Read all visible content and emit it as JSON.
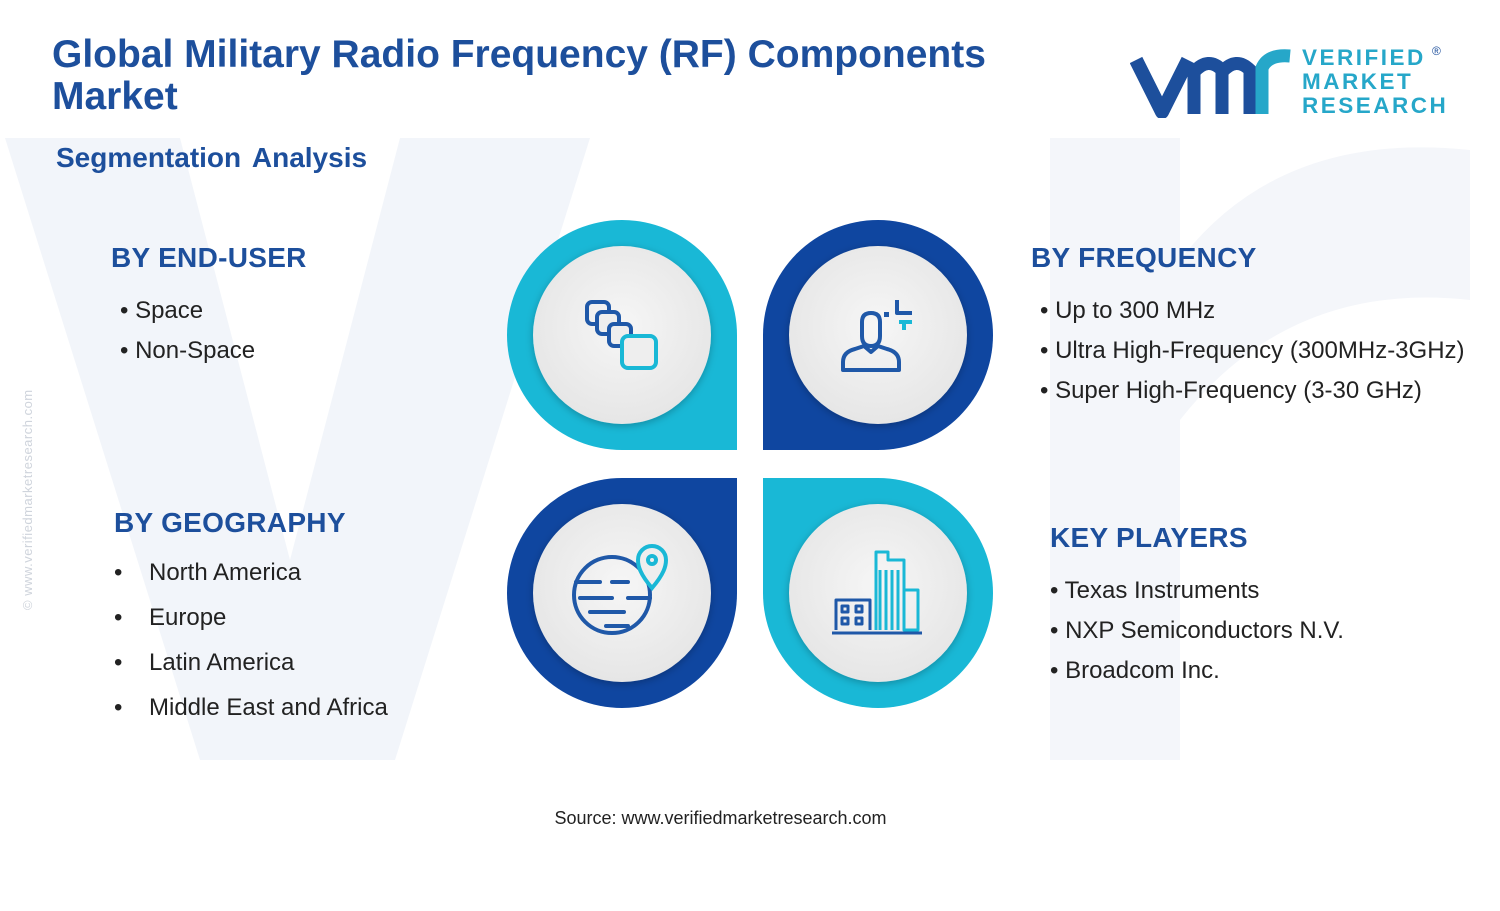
{
  "header": {
    "title": "Global Military Radio Frequency (RF) Components Market",
    "subtitle": "Segmentation Analysis"
  },
  "logo": {
    "lines": [
      "VERIFIED",
      "MARKET",
      "RESEARCH"
    ],
    "registered": "®"
  },
  "watermark": "© www.verifiedmarketresearch.com",
  "segments": {
    "end_user": {
      "heading": "BY END-USER",
      "items": [
        "Space",
        "Non-Space"
      ]
    },
    "frequency": {
      "heading": "BY FREQUENCY",
      "items": [
        "Up to 300 MHz",
        "Ultra High-Frequency (300MHz-3GHz)",
        "Super High-Frequency (3-30 GHz)"
      ]
    },
    "geography": {
      "heading": "BY GEOGRAPHY",
      "items": [
        "North America",
        "Europe",
        "Latin America",
        "Middle East and Africa"
      ]
    },
    "key_players": {
      "heading": "KEY PLAYERS",
      "items": [
        "Texas Instruments",
        "NXP Semiconductors N.V.",
        "Broadcom Inc."
      ]
    }
  },
  "icons": {
    "top_left": "stacked-squares-icon",
    "top_right": "user-profile-icon",
    "bottom_left": "globe-location-icon",
    "bottom_right": "city-buildings-icon"
  },
  "colors": {
    "title": "#1d4f9c",
    "cyan": "#19b8d6",
    "navy": "#0f46a0",
    "icon": "#1f58a8"
  },
  "footer": {
    "source": "Source: www.verifiedmarketresearch.com"
  }
}
